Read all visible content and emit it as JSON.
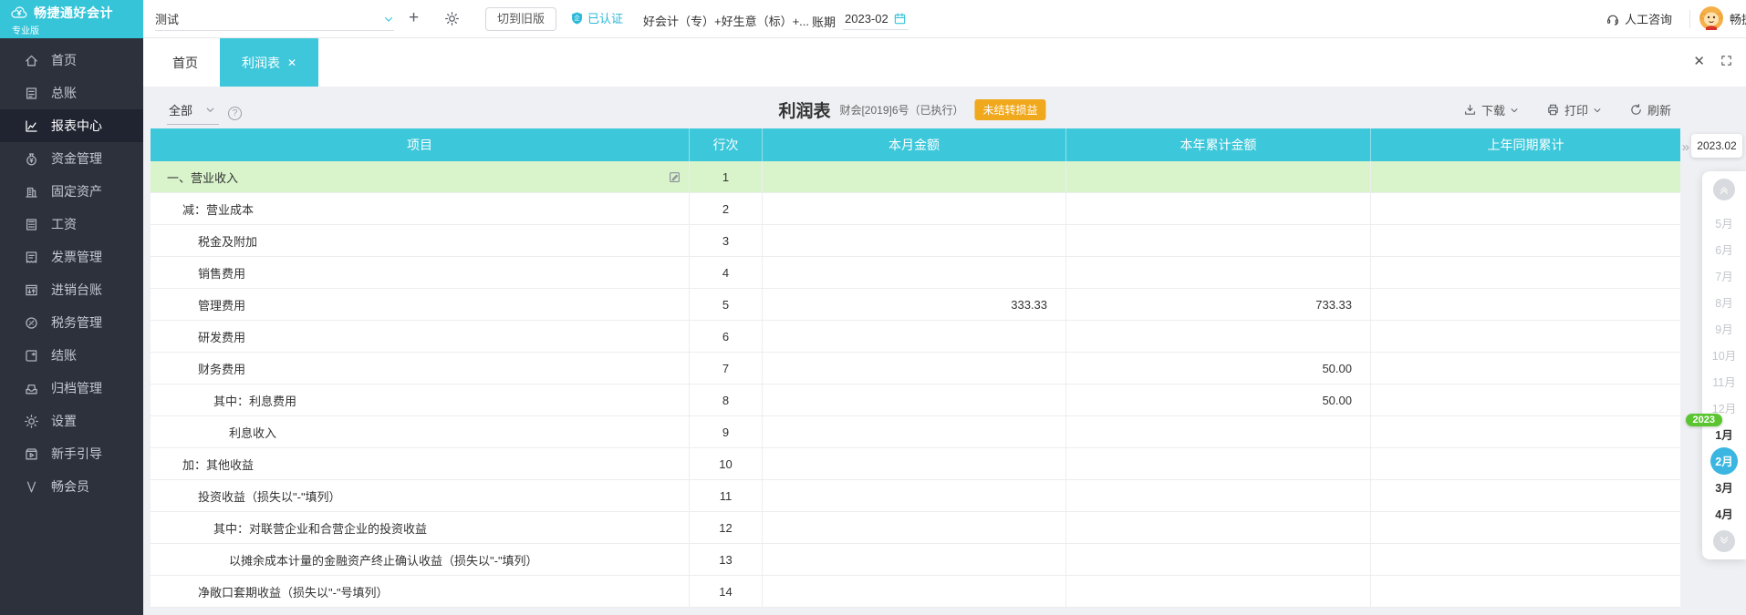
{
  "topbar": {
    "brand": {
      "name": "畅捷通好会计",
      "edition": "专业版",
      "logo_icon": "cloud-yuan-icon"
    },
    "account_select": {
      "value": "测试"
    },
    "add_label": "+",
    "switch_old_label": "切到旧版",
    "certified_label": "已认证",
    "package_label": "好会计（专）+好生意（标）+...",
    "period_label": "账期",
    "period_value": "2023-02",
    "support_label": "人工咨询",
    "user_label": "畅捷通B组..."
  },
  "sidebar": {
    "items": [
      {
        "label": "首页",
        "icon": "home-icon",
        "active": false
      },
      {
        "label": "总账",
        "icon": "ledger-icon",
        "active": false
      },
      {
        "label": "报表中心",
        "icon": "report-icon",
        "active": true
      },
      {
        "label": "资金管理",
        "icon": "funds-icon",
        "active": false
      },
      {
        "label": "固定资产",
        "icon": "assets-icon",
        "active": false
      },
      {
        "label": "工资",
        "icon": "salary-icon",
        "active": false
      },
      {
        "label": "发票管理",
        "icon": "invoice-icon",
        "active": false
      },
      {
        "label": "进销台账",
        "icon": "inout-icon",
        "active": false
      },
      {
        "label": "税务管理",
        "icon": "tax-icon",
        "active": false
      },
      {
        "label": "结账",
        "icon": "closing-icon",
        "active": false
      },
      {
        "label": "归档管理",
        "icon": "archive-icon",
        "active": false
      },
      {
        "label": "设置",
        "icon": "settings-icon",
        "active": false
      },
      {
        "label": "新手引导",
        "icon": "guide-icon",
        "active": false
      },
      {
        "label": "畅会员",
        "icon": "member-icon",
        "active": false
      }
    ]
  },
  "tabs": {
    "items": [
      {
        "label": "首页",
        "active": false,
        "closable": false
      },
      {
        "label": "利润表",
        "active": true,
        "closable": true
      }
    ]
  },
  "toolbar": {
    "filter_value": "全部",
    "title": "利润表",
    "subtitle": "财会[2019]6号（已执行）",
    "badge": "未结转损益",
    "download_label": "下载",
    "print_label": "打印",
    "refresh_label": "刷新"
  },
  "report_table": {
    "columns": [
      "项目",
      "行次",
      "本月金额",
      "本年累计金额",
      "上年同期累计"
    ],
    "rows": [
      {
        "item": "一、营业收入",
        "line": "1",
        "month": "",
        "year": "",
        "prev": "",
        "indent": 0,
        "highlight": true,
        "editable": true
      },
      {
        "item": "减：营业成本",
        "line": "2",
        "month": "",
        "year": "",
        "prev": "",
        "indent": 1,
        "highlight": false,
        "editable": false
      },
      {
        "item": "税金及附加",
        "line": "3",
        "month": "",
        "year": "",
        "prev": "",
        "indent": 2,
        "highlight": false,
        "editable": false
      },
      {
        "item": "销售费用",
        "line": "4",
        "month": "",
        "year": "",
        "prev": "",
        "indent": 2,
        "highlight": false,
        "editable": false
      },
      {
        "item": "管理费用",
        "line": "5",
        "month": "333.33",
        "year": "733.33",
        "prev": "",
        "indent": 2,
        "highlight": false,
        "editable": false
      },
      {
        "item": "研发费用",
        "line": "6",
        "month": "",
        "year": "",
        "prev": "",
        "indent": 2,
        "highlight": false,
        "editable": false
      },
      {
        "item": "财务费用",
        "line": "7",
        "month": "",
        "year": "50.00",
        "prev": "",
        "indent": 2,
        "highlight": false,
        "editable": false
      },
      {
        "item": "其中：利息费用",
        "line": "8",
        "month": "",
        "year": "50.00",
        "prev": "",
        "indent": 3,
        "highlight": false,
        "editable": false
      },
      {
        "item": "利息收入",
        "line": "9",
        "month": "",
        "year": "",
        "prev": "",
        "indent": 4,
        "highlight": false,
        "editable": false
      },
      {
        "item": "加：其他收益",
        "line": "10",
        "month": "",
        "year": "",
        "prev": "",
        "indent": 1,
        "highlight": false,
        "editable": false
      },
      {
        "item": "投资收益（损失以\"-\"填列）",
        "line": "11",
        "month": "",
        "year": "",
        "prev": "",
        "indent": 2,
        "highlight": false,
        "editable": false
      },
      {
        "item": "其中：对联营企业和合营企业的投资收益",
        "line": "12",
        "month": "",
        "year": "",
        "prev": "",
        "indent": 3,
        "highlight": false,
        "editable": false
      },
      {
        "item": "以摊余成本计量的金融资产终止确认收益（损失以\"-\"填列）",
        "line": "13",
        "month": "",
        "year": "",
        "prev": "",
        "indent": 4,
        "highlight": false,
        "editable": false
      },
      {
        "item": "净敞口套期收益（损失以\"-\"号填列）",
        "line": "14",
        "month": "",
        "year": "",
        "prev": "",
        "indent": 2,
        "highlight": false,
        "editable": false
      }
    ]
  },
  "month_rail": {
    "period_chip": "2023.02",
    "year_badge": "2023",
    "months": [
      {
        "label": "5月",
        "state": "disabled"
      },
      {
        "label": "6月",
        "state": "disabled"
      },
      {
        "label": "7月",
        "state": "disabled"
      },
      {
        "label": "8月",
        "state": "disabled"
      },
      {
        "label": "9月",
        "state": "disabled"
      },
      {
        "label": "10月",
        "state": "disabled"
      },
      {
        "label": "11月",
        "state": "disabled"
      },
      {
        "label": "12月",
        "state": "disabled"
      },
      {
        "label": "1月",
        "state": "normal"
      },
      {
        "label": "2月",
        "state": "active"
      },
      {
        "label": "3月",
        "state": "normal"
      },
      {
        "label": "4月",
        "state": "normal"
      }
    ]
  },
  "colors": {
    "primary_cyan": "#38c4d8",
    "active_tab": "#3ec7db",
    "table_header": "#3cc7da",
    "highlight_row_green": "#d9f4cb",
    "badge_orange": "#f0a81c",
    "year_badge_green": "#5bc531",
    "active_month_blue": "#3ab6e0",
    "sidebar_bg": "#2d313c"
  }
}
